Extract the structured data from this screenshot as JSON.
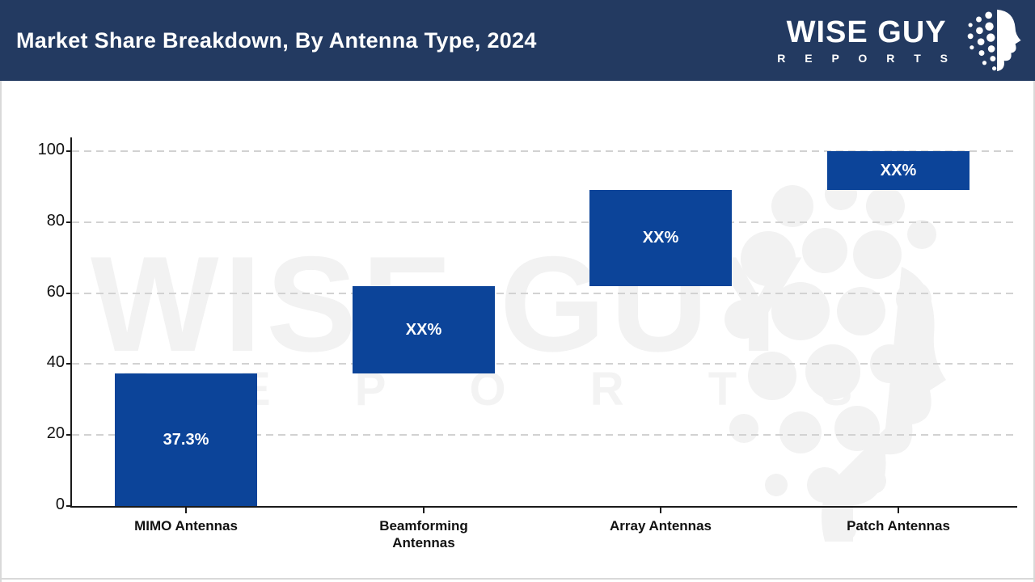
{
  "header": {
    "title": "Market Share Breakdown, By Antenna Type, 2024",
    "logo": {
      "line1": "WISE GUY",
      "line2": "R E P O R T S"
    }
  },
  "watermark": {
    "line1": "WISE GUY",
    "line2": "R E P O R T S"
  },
  "colors": {
    "header_bg": "#233a61",
    "bar": "#0c4499",
    "bar_label": "#ffffff",
    "grid": "#d2d2d2",
    "axis": "#1a1a1a",
    "watermark": "#f2f2f2",
    "frame": "#d9d9d9"
  },
  "chart_data": {
    "type": "bar",
    "subtype": "waterfall",
    "title": "Market Share Breakdown, By Antenna Type, 2024",
    "categories": [
      "MIMO Antennas",
      "Beamforming Antennas",
      "Array Antennas",
      "Patch Antennas"
    ],
    "segments": [
      {
        "category": "MIMO Antennas",
        "start": 0,
        "end": 37.3,
        "label": "37.3%"
      },
      {
        "category": "Beamforming Antennas",
        "start": 37.3,
        "end": 62,
        "label": "XX%"
      },
      {
        "category": "Array Antennas",
        "start": 62,
        "end": 89,
        "label": "XX%"
      },
      {
        "category": "Patch Antennas",
        "start": 89,
        "end": 100,
        "label": "XX%"
      }
    ],
    "yticks": [
      0,
      20,
      40,
      60,
      80,
      100
    ],
    "ylim": [
      0,
      100
    ],
    "xlabel": "",
    "ylabel": "",
    "grid": "horizontal-dashed",
    "legend": "none"
  }
}
